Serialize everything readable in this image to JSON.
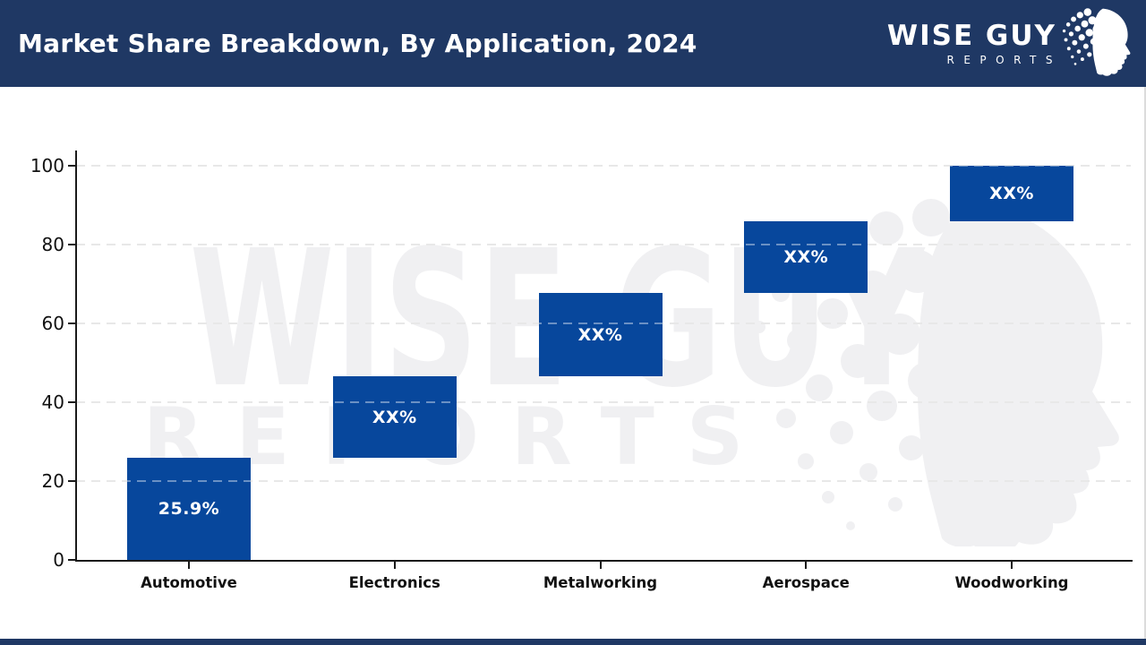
{
  "header": {
    "title": "Market Share Breakdown, By Application, 2024",
    "logo": {
      "line1": "WISE GUY",
      "line2": "REPORTS"
    }
  },
  "watermark": {
    "line1": "WISE GUY",
    "line2": "REPORTS"
  },
  "chart_data": {
    "type": "bar",
    "subtype": "waterfall",
    "title": "Market Share Breakdown, By Application, 2024",
    "categories": [
      "Automotive",
      "Electronics",
      "Metalworking",
      "Aerospace",
      "Woodworking"
    ],
    "series": [
      {
        "name": "Market share (%)",
        "segments": [
          {
            "start": 0,
            "end": 25.9,
            "label": "25.9%"
          },
          {
            "start": 25.9,
            "end": 46.5,
            "label": "XX%"
          },
          {
            "start": 46.5,
            "end": 67.7,
            "label": "XX%"
          },
          {
            "start": 67.7,
            "end": 86.0,
            "label": "XX%"
          },
          {
            "start": 86.0,
            "end": 100,
            "label": "XX%"
          }
        ]
      }
    ],
    "xlabel": "",
    "ylabel": "",
    "ylim": [
      0,
      100
    ],
    "yticks": [
      0,
      20,
      40,
      60,
      80,
      100
    ],
    "grid": "horizontal-dashed",
    "legend": "none",
    "bar_color": "#07479c",
    "bar_label_color": "#ffffff"
  },
  "colors": {
    "header_bg": "#1f3864",
    "footer_bg": "#1f3864",
    "bar": "#07479c",
    "grid": "#d9d9d9",
    "axis": "#1a1a1a",
    "watermark": "#f0f0f2"
  }
}
